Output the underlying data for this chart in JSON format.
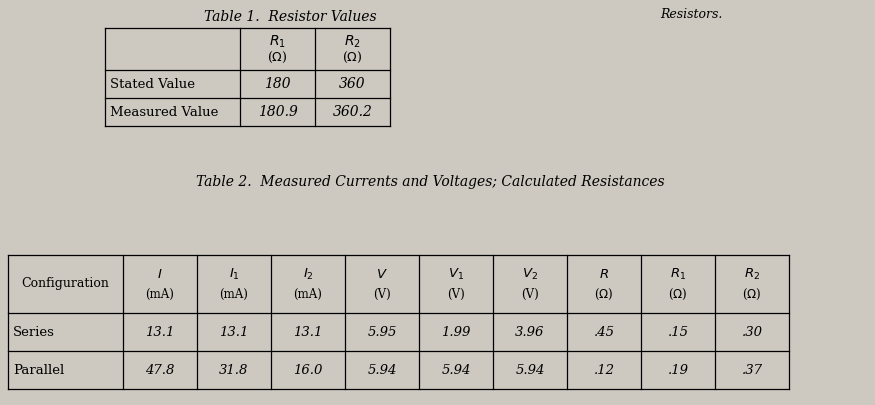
{
  "bg_color": "#cdc8c0",
  "title_text": "Resistors.",
  "table1_title": "Table 1.  Resistor Values",
  "table1_col_headers": [
    "$R_1$",
    "($\\Omega$)",
    "$R_2$",
    "($\\Omega$)"
  ],
  "table1_row_labels": [
    "Stated Value",
    "Measured Value"
  ],
  "table1_data": [
    [
      "180",
      "360"
    ],
    [
      "180.9",
      "360.2"
    ]
  ],
  "table2_title": "Table 2.  Measured Currents and Voltages; Calculated Resistances",
  "table2_col_headers_line1": [
    "$I$",
    "$I_1$",
    "$I_2$",
    "$V$",
    "$V_1$",
    "$V_2$",
    "$R$",
    "$R_1$",
    "$R_2$"
  ],
  "table2_col_headers_line2": [
    "(mA)",
    "(mA)",
    "(mA)",
    "(V)",
    "(V)",
    "(V)",
    "($\\Omega$)",
    "($\\Omega$)",
    "($\\Omega$)"
  ],
  "table2_row_labels": [
    "Series",
    "Parallel"
  ],
  "table2_data": [
    [
      "13.1",
      "13.1",
      "13.1",
      "5.95",
      "1.99",
      "3.96",
      ".45",
      ".15",
      ".30"
    ],
    [
      "47.8",
      "31.8",
      "16.0",
      "5.94",
      "5.94",
      "5.94",
      ".12",
      ".19",
      ".37"
    ]
  ],
  "fig_width": 8.75,
  "fig_height": 4.05,
  "dpi": 100
}
